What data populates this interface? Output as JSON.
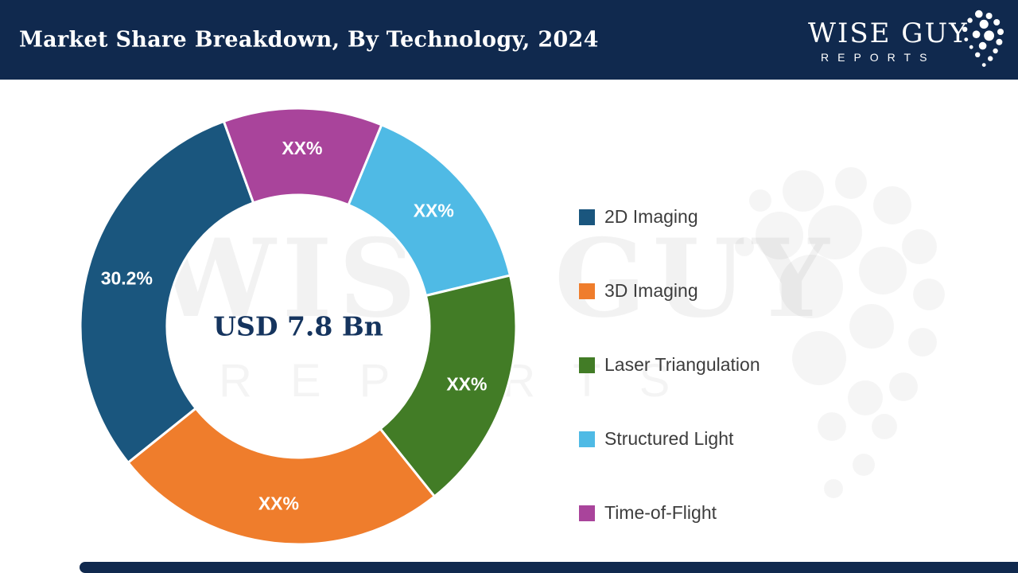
{
  "header": {
    "title": "Market Share Breakdown, By Technology, 2024",
    "logo": {
      "wordmark": "WISE GUY",
      "subtext": "REPORTS"
    }
  },
  "watermark": {
    "line1": "WISE GUY",
    "line2": "REPORTS"
  },
  "colors": {
    "header_bg": "#10294e",
    "bottom_bar": "#10294e",
    "center_text": "#15345e",
    "legend_text": "#3d3d3d"
  },
  "chart_data": {
    "type": "pie",
    "donut": true,
    "title": "Market Share Breakdown, By Technology, 2024",
    "center_label": "USD 7.8 Bn",
    "start_angle_deg": 231.3,
    "values_note": "Only the 2D Imaging share (30.2%) is labeled; other segment values are estimated from arc angles, their labels show XX%",
    "segments": [
      {
        "name": "2D Imaging",
        "label": "30.2%",
        "value": 30.2,
        "color": "#1a567e"
      },
      {
        "name": "Time-of-Flight",
        "label": "XX%",
        "value": 11.8,
        "color": "#a9449b"
      },
      {
        "name": "Structured Light",
        "label": "XX%",
        "value": 15.0,
        "color": "#4fbae5"
      },
      {
        "name": "Laser Triangulation",
        "label": "XX%",
        "value": 18.0,
        "color": "#427c26"
      },
      {
        "name": "3D Imaging",
        "label": "XX%",
        "value": 25.0,
        "color": "#ef7d2c"
      }
    ],
    "legend": [
      {
        "label": "2D Imaging",
        "color": "#1a567e"
      },
      {
        "label": "3D Imaging",
        "color": "#ef7d2c"
      },
      {
        "label": "Laser Triangulation",
        "color": "#427c26"
      },
      {
        "label": "Structured Light",
        "color": "#4fbae5"
      },
      {
        "label": "Time-of-Flight",
        "color": "#a9449b"
      }
    ]
  }
}
